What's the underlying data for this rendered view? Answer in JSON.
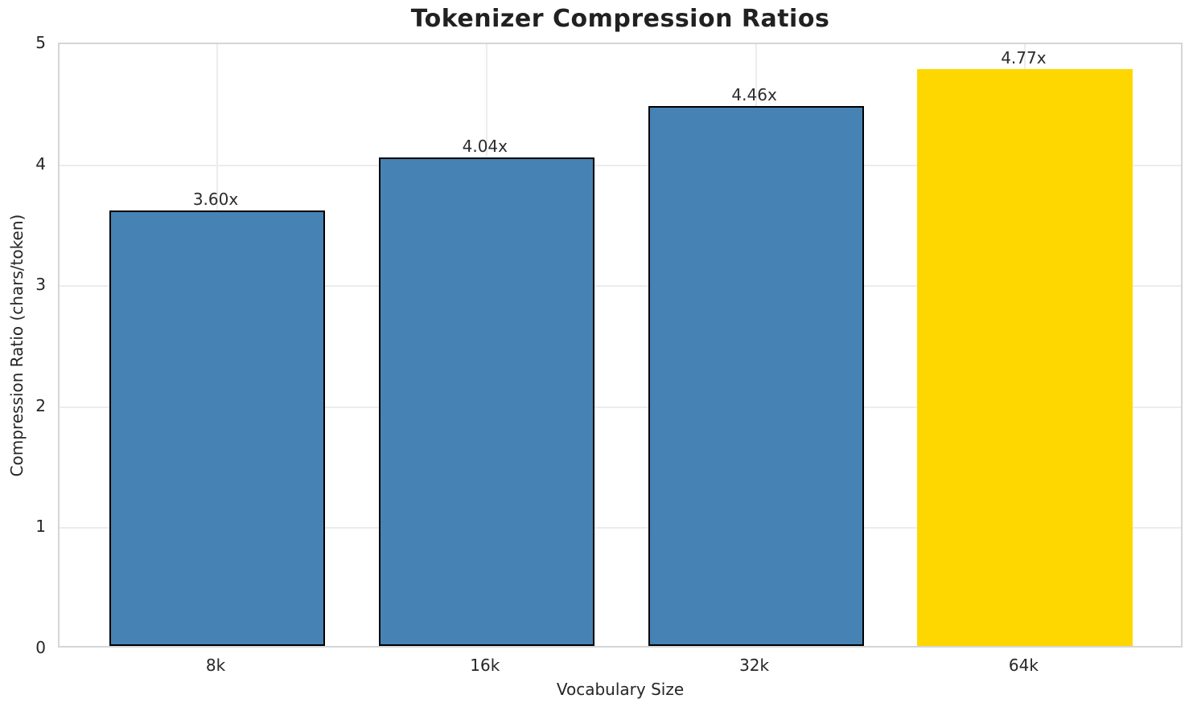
{
  "chart_data": {
    "type": "bar",
    "title": "Tokenizer Compression Ratios",
    "xlabel": "Vocabulary Size",
    "ylabel": "Compression Ratio (chars/token)",
    "categories": [
      "8k",
      "16k",
      "32k",
      "64k"
    ],
    "values": [
      3.6,
      4.04,
      4.46,
      4.77
    ],
    "bar_labels": [
      "3.60x",
      "4.04x",
      "4.46x",
      "4.77x"
    ],
    "bar_colors": [
      "#4682b4",
      "#4682b4",
      "#4682b4",
      "#ffd700"
    ],
    "bar_edge_colors": [
      "#000000",
      "#000000",
      "#000000",
      "none"
    ],
    "ylim": [
      0,
      5
    ],
    "yticks": [
      0,
      1,
      2,
      3,
      4,
      5
    ],
    "grid": "both",
    "legend": "none",
    "colors": {
      "grid": "#ececec",
      "spine": "#d5d5d5",
      "text": "#262626",
      "title": "#212121",
      "background": "#ffffff",
      "bar_default": "#4682b4",
      "bar_highlight": "#ffd700"
    }
  }
}
